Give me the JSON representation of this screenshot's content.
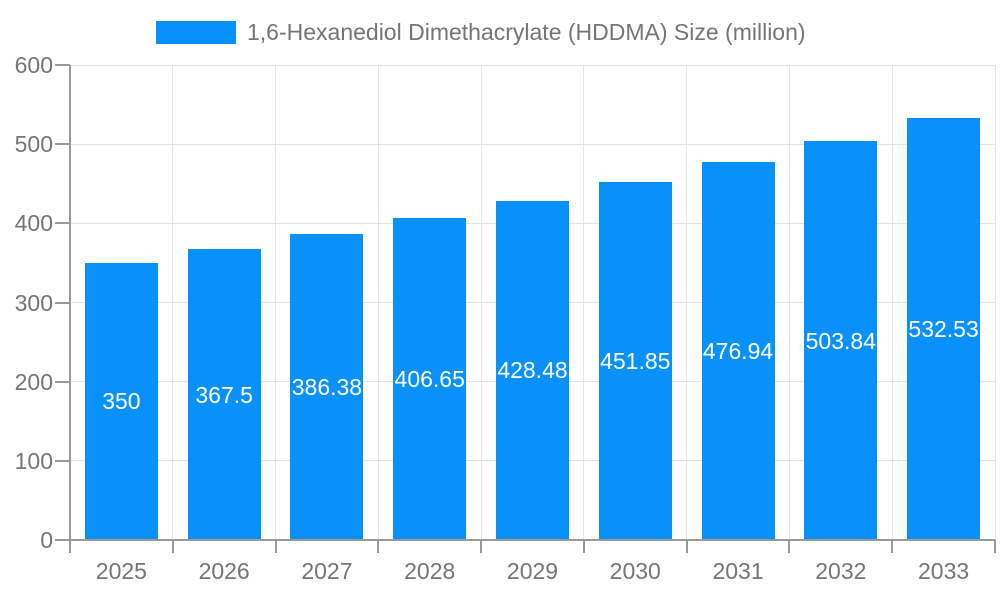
{
  "chart_data": {
    "type": "bar",
    "title": "1,6-Hexanediol Dimethacrylate (HDDMA) Size (million)",
    "categories": [
      "2025",
      "2026",
      "2027",
      "2028",
      "2029",
      "2030",
      "2031",
      "2032",
      "2033"
    ],
    "values": [
      350,
      367.5,
      386.38,
      406.65,
      428.48,
      451.85,
      476.94,
      503.84,
      532.53
    ],
    "value_labels": [
      "350",
      "367.5",
      "386.38",
      "406.65",
      "428.48",
      "451.85",
      "476.94",
      "503.84",
      "532.53"
    ],
    "xlabel": "",
    "ylabel": "",
    "ylim": [
      0,
      600
    ],
    "y_ticks": [
      0,
      100,
      200,
      300,
      400,
      500,
      600
    ],
    "y_tick_labels": [
      "0",
      "100",
      "200",
      "300",
      "400",
      "500",
      "600"
    ],
    "grid": "on",
    "legend_position": "top",
    "colors": {
      "bar": "#0991fb",
      "axis": "#999999",
      "grid": "#e4e4e4",
      "axis_text": "#757575",
      "bar_label_text": "#ffffff",
      "background": "#ffffff"
    }
  }
}
